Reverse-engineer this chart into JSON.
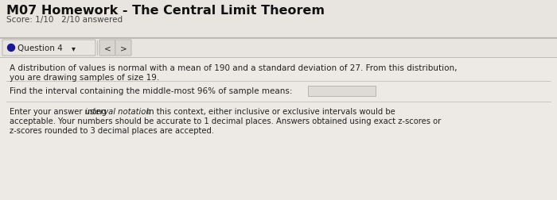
{
  "title": "M07 Homework - The Central Limit Theorem",
  "score_text": "Score: 1/10   2/10 answered",
  "question_label": "Question 4",
  "body_line1": "A distribution of values is normal with a mean of 190 and a standard deviation of 27. From this distribution,",
  "body_line2": "you are drawing samples of size 19.",
  "find_line": "Find the interval containing the middle-most 96% of sample means:",
  "footer_line1_a": "Enter your answer using ",
  "footer_line1_b": "interval notation",
  "footer_line1_c": ". In this context, either inclusive or exclusive intervals would be",
  "footer_line2": "acceptable. Your numbers should be accurate to 1 decimal places. Answers obtained using exact z-scores or",
  "footer_line3": "z-scores rounded to 3 decimal places are accepted.",
  "bg_color": "#edeae5",
  "header_color": "#e8e5e0",
  "nav_bar_color": "#e8e5e0",
  "card_color": "#edeae5",
  "border_color": "#b8b5b0",
  "title_color": "#111111",
  "text_color": "#222222",
  "score_color": "#444444",
  "dot_color": "#1a1a99",
  "input_box_color": "#dedad5",
  "nav_btn_color": "#d8d5d0"
}
